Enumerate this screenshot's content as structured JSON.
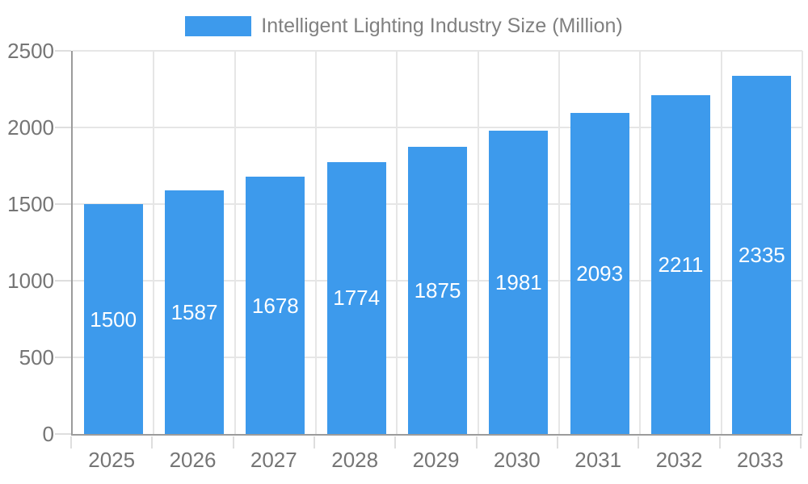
{
  "legend": {
    "label": "Intelligent Lighting Industry Size (Million)"
  },
  "chart_data": {
    "type": "bar",
    "title": "Intelligent Lighting Industry Size (Million)",
    "series_name": "Intelligent Lighting Industry Size (Million)",
    "categories": [
      "2025",
      "2026",
      "2027",
      "2028",
      "2029",
      "2030",
      "2031",
      "2032",
      "2033"
    ],
    "values": [
      1500,
      1587,
      1678,
      1774,
      1875,
      1981,
      2093,
      2211,
      2335
    ],
    "value_labels_shown": true,
    "value_label_position": "inside-middle",
    "xlabel": "",
    "ylabel": "",
    "ylim": [
      0,
      2500
    ],
    "yticks": [
      0,
      500,
      1000,
      1500,
      2000,
      2500
    ],
    "grid": true,
    "legend_position": "top-center",
    "bar_color": "#3D9AEC",
    "value_label_color": "#FFFFFF"
  },
  "colors": {
    "bar": "#3D9AEC",
    "axis_line": "#9B9B9B",
    "gridline": "#E6E6E6",
    "tick": "#DEDEDE",
    "axis_text": "#757575",
    "legend_text": "#808080",
    "background": "#FFFFFF"
  }
}
